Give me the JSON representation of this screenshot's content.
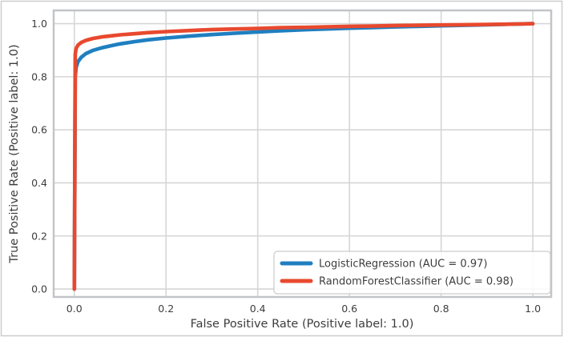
{
  "figure": {
    "kind": "roc-curve-plot"
  },
  "chart_data": {
    "type": "line",
    "title": "",
    "xlabel": "False Positive Rate (Positive label: 1.0)",
    "ylabel": "True Positive Rate (Positive label: 1.0)",
    "xlim": [
      -0.045,
      1.04
    ],
    "ylim": [
      -0.03,
      1.05
    ],
    "x_ticks": [
      0.0,
      0.2,
      0.4,
      0.6,
      0.8,
      1.0
    ],
    "y_ticks": [
      0.0,
      0.2,
      0.4,
      0.6,
      0.8,
      1.0
    ],
    "tick_format_decimals": 1,
    "grid": true,
    "legend_position": "lower right",
    "series": [
      {
        "name": "LogisticRegression (AUC = 0.97)",
        "model": "LogisticRegression",
        "auc": 0.97,
        "color": "#1f7fc0",
        "points": [
          [
            0.0,
            0.0
          ],
          [
            0.002,
            0.8
          ],
          [
            0.004,
            0.835
          ],
          [
            0.008,
            0.857
          ],
          [
            0.015,
            0.873
          ],
          [
            0.025,
            0.887
          ],
          [
            0.04,
            0.899
          ],
          [
            0.06,
            0.909
          ],
          [
            0.08,
            0.917
          ],
          [
            0.1,
            0.924
          ],
          [
            0.13,
            0.932
          ],
          [
            0.16,
            0.939
          ],
          [
            0.2,
            0.946
          ],
          [
            0.25,
            0.953
          ],
          [
            0.3,
            0.959
          ],
          [
            0.35,
            0.964
          ],
          [
            0.4,
            0.969
          ],
          [
            0.45,
            0.973
          ],
          [
            0.5,
            0.977
          ],
          [
            0.55,
            0.98
          ],
          [
            0.6,
            0.983
          ],
          [
            0.65,
            0.985
          ],
          [
            0.7,
            0.988
          ],
          [
            0.75,
            0.99
          ],
          [
            0.8,
            0.992
          ],
          [
            0.85,
            0.994
          ],
          [
            0.9,
            0.996
          ],
          [
            0.95,
            0.998
          ],
          [
            1.0,
            1.0
          ]
        ]
      },
      {
        "name": "RandomForestClassifier (AUC = 0.98)",
        "model": "RandomForestClassifier",
        "auc": 0.98,
        "color": "#e8492e",
        "points": [
          [
            0.0,
            0.0
          ],
          [
            0.002,
            0.885
          ],
          [
            0.004,
            0.906
          ],
          [
            0.008,
            0.919
          ],
          [
            0.015,
            0.929
          ],
          [
            0.025,
            0.937
          ],
          [
            0.04,
            0.944
          ],
          [
            0.06,
            0.95
          ],
          [
            0.08,
            0.954
          ],
          [
            0.1,
            0.958
          ],
          [
            0.13,
            0.962
          ],
          [
            0.16,
            0.966
          ],
          [
            0.2,
            0.97
          ],
          [
            0.25,
            0.974
          ],
          [
            0.3,
            0.978
          ],
          [
            0.35,
            0.98
          ],
          [
            0.4,
            0.982
          ],
          [
            0.45,
            0.985
          ],
          [
            0.5,
            0.986
          ],
          [
            0.55,
            0.988
          ],
          [
            0.6,
            0.99
          ],
          [
            0.65,
            0.991
          ],
          [
            0.7,
            0.993
          ],
          [
            0.75,
            0.994
          ],
          [
            0.8,
            0.995
          ],
          [
            0.85,
            0.996
          ],
          [
            0.9,
            0.997
          ],
          [
            0.95,
            0.998
          ],
          [
            1.0,
            1.0
          ]
        ]
      }
    ],
    "colors": {
      "background": "#ffffff",
      "plot_background": "#ffffff",
      "grid": "#d6d6d6",
      "spine": "#c2c5c8",
      "text": "#3d3d3d",
      "legend_border": "#cccccc",
      "legend_background": "#ffffff",
      "figure_border": "#cdcdcd"
    }
  }
}
